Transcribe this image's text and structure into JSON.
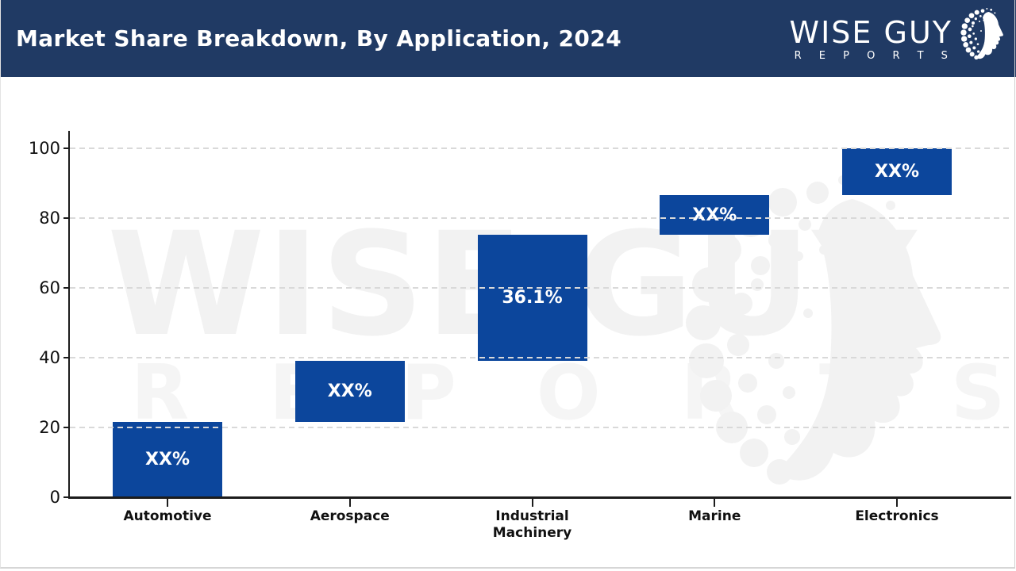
{
  "header": {
    "title": "Market Share Breakdown, By Application, 2024",
    "logo": {
      "line1": "WISE GUY",
      "line2": "R E P O R T S"
    }
  },
  "watermark": {
    "line1": "WISE GUY",
    "line2": "R E P O R T S"
  },
  "chart_data": {
    "type": "bar",
    "subtype": "waterfall",
    "title": "Market Share Breakdown, By Application, 2024",
    "categories": [
      "Automotive",
      "Aerospace",
      "Industrial Machinery",
      "Marine",
      "Electronics"
    ],
    "bars": [
      {
        "category": "Automotive",
        "start": 0,
        "end": 21.7,
        "label": "XX%"
      },
      {
        "category": "Aerospace",
        "start": 21.7,
        "end": 39.1,
        "label": "XX%"
      },
      {
        "category": "Industrial Machinery",
        "start": 39.1,
        "end": 75.2,
        "label": "36.1%"
      },
      {
        "category": "Marine",
        "start": 75.2,
        "end": 86.6,
        "label": "XX%"
      },
      {
        "category": "Electronics",
        "start": 86.6,
        "end": 100,
        "label": "XX%"
      }
    ],
    "xlabel": "",
    "ylabel": "",
    "yticks": [
      0,
      20,
      40,
      60,
      80,
      100
    ],
    "ylim": [
      0,
      105
    ],
    "grid": "horizontal-dashed",
    "legend": "none",
    "bar_color": "#0c469c",
    "value_label_color": "#ffffff"
  },
  "colors": {
    "header_bg": "#203a64",
    "bar": "#0c469c",
    "axis": "#1c1c1c",
    "grid": "#d9d9d9",
    "watermark": "#f2f2f2",
    "frame": "#d6d6d6"
  }
}
